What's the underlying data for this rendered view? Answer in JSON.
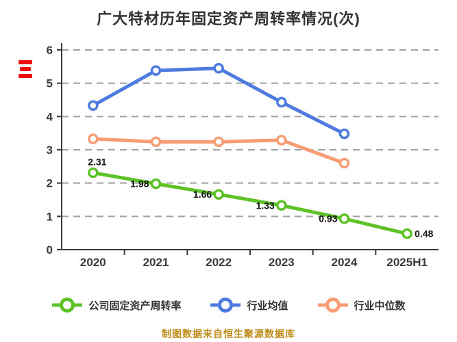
{
  "footer": {
    "source_text": "制图数据来自恒生聚源数据库"
  },
  "colors": {
    "company": "#5cc226",
    "industry_mean": "#4d7bdf",
    "industry_median": "#f89c73",
    "title_text": "#333333",
    "axis_text": "#3a3a3a",
    "grid": "#a0a0a0",
    "label_text": "#111111",
    "footer_text": "#bf8b17",
    "watermark": "#ee1111"
  },
  "legend": [
    {
      "label": "公司固定资产周转率",
      "series": "company"
    },
    {
      "label": "行业均值",
      "series": "industry_mean"
    },
    {
      "label": "行业中位数",
      "series": "industry_median"
    }
  ],
  "chart_data": {
    "type": "line",
    "title": "广大特材历年固定资产周转率情况(次)",
    "categories": [
      "2020",
      "2021",
      "2022",
      "2023",
      "2024",
      "2025H1"
    ],
    "series": [
      {
        "name": "公司固定资产周转率",
        "color_key": "company",
        "values": [
          2.31,
          1.98,
          1.66,
          1.33,
          0.93,
          0.48
        ],
        "labels": [
          "2.31",
          "1.98",
          "1.66",
          "1.33",
          "0.93",
          "0.48"
        ]
      },
      {
        "name": "行业均值",
        "color_key": "industry_mean",
        "values": [
          4.33,
          5.38,
          5.45,
          4.43,
          3.48,
          null
        ]
      },
      {
        "name": "行业中位数",
        "color_key": "industry_median",
        "values": [
          3.33,
          3.24,
          3.24,
          3.29,
          2.6,
          null
        ]
      }
    ],
    "xlabel": "",
    "ylabel": "",
    "ylim": [
      0,
      6
    ],
    "ytick_step": 1,
    "grid": "dashed-horizontal",
    "legend_position": "bottom",
    "marker": "ring"
  }
}
